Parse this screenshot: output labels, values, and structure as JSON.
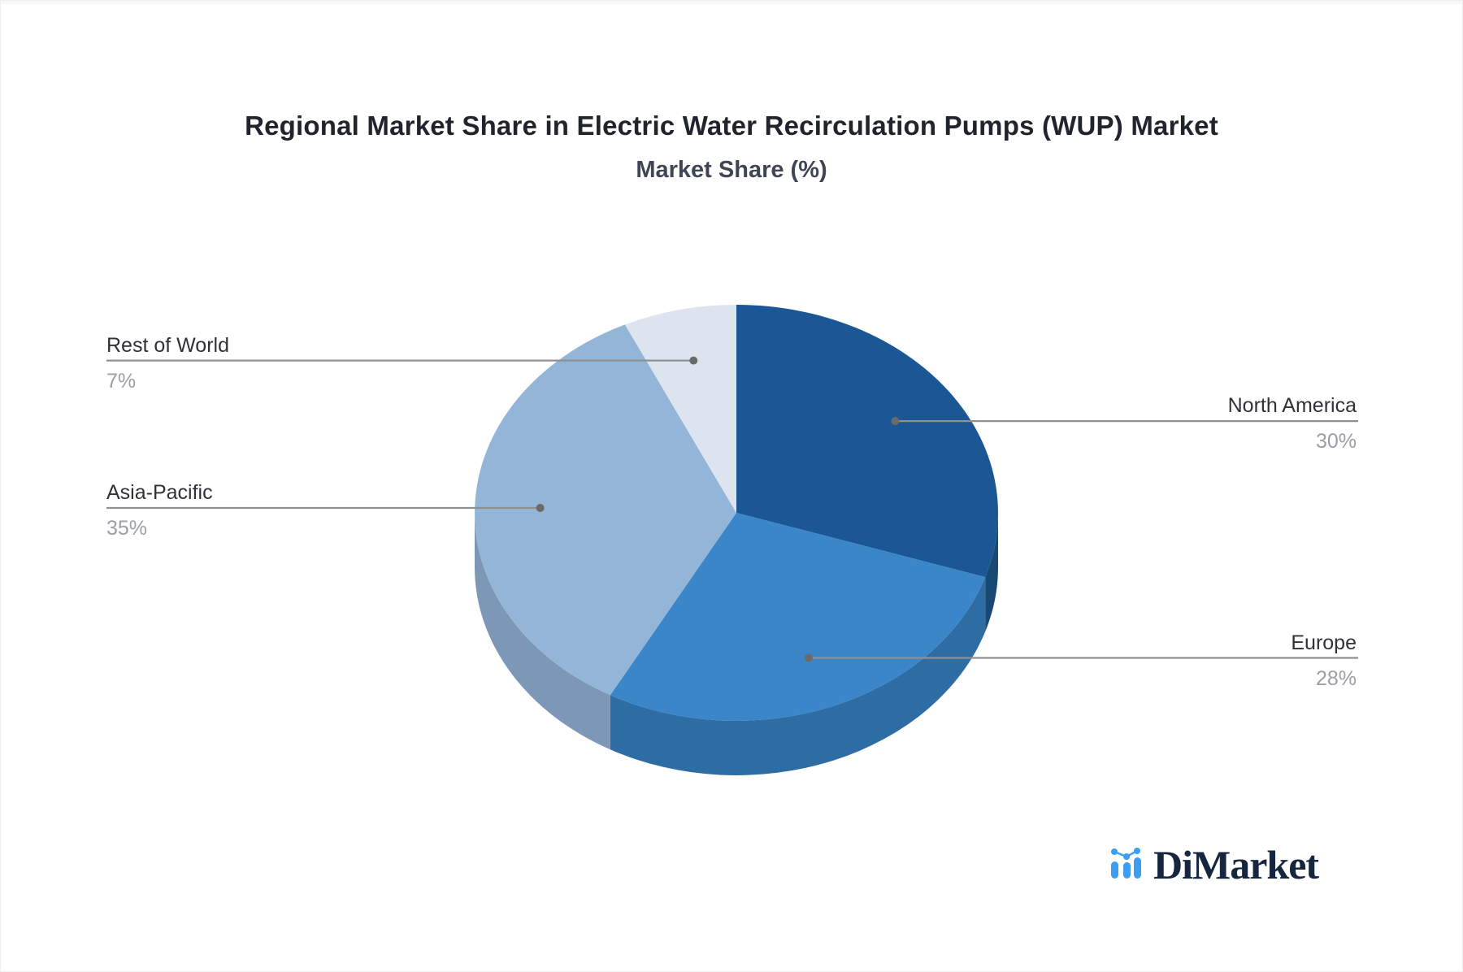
{
  "chart_data": {
    "type": "pie",
    "style": "3d",
    "title": "Regional Market Share in Electric Water Recirculation Pumps (WUP) Market",
    "subtitle": "Market Share (%)",
    "title_color": "#20242C",
    "subtitle_color": "#3E4653",
    "unit": "%",
    "start_angle": "12-oclock",
    "direction": "clockwise",
    "legend_position": "callout-labels",
    "slices": [
      {
        "label": "North America",
        "value": 30,
        "pct_label": "30%",
        "color": "#1A5794",
        "side_color": "#174973",
        "label_side": "right"
      },
      {
        "label": "Europe",
        "value": 28,
        "pct_label": "28%",
        "color": "#3A86C8",
        "side_color": "#2E6CA4",
        "label_side": "right"
      },
      {
        "label": "Asia-Pacific",
        "value": 35,
        "pct_label": "35%",
        "color": "#93B5D8",
        "side_color": "#7D98B6",
        "label_side": "left"
      },
      {
        "label": "Rest of World",
        "value": 7,
        "pct_label": "7%",
        "color": "#DCE5EF",
        "side_color": "#C3CFDE",
        "label_side": "left"
      }
    ],
    "leader_line_color": "#909090",
    "leader_dot_color": "#6A6A6A",
    "label_color": "#2F3237",
    "pct_color": "#9B9FA3"
  },
  "branding": {
    "logo_text": "DiMarket",
    "logo_icon": "bar-line-chart-icon",
    "logo_icon_color": "#3B9EF3",
    "logo_text_color": "#16263F"
  }
}
